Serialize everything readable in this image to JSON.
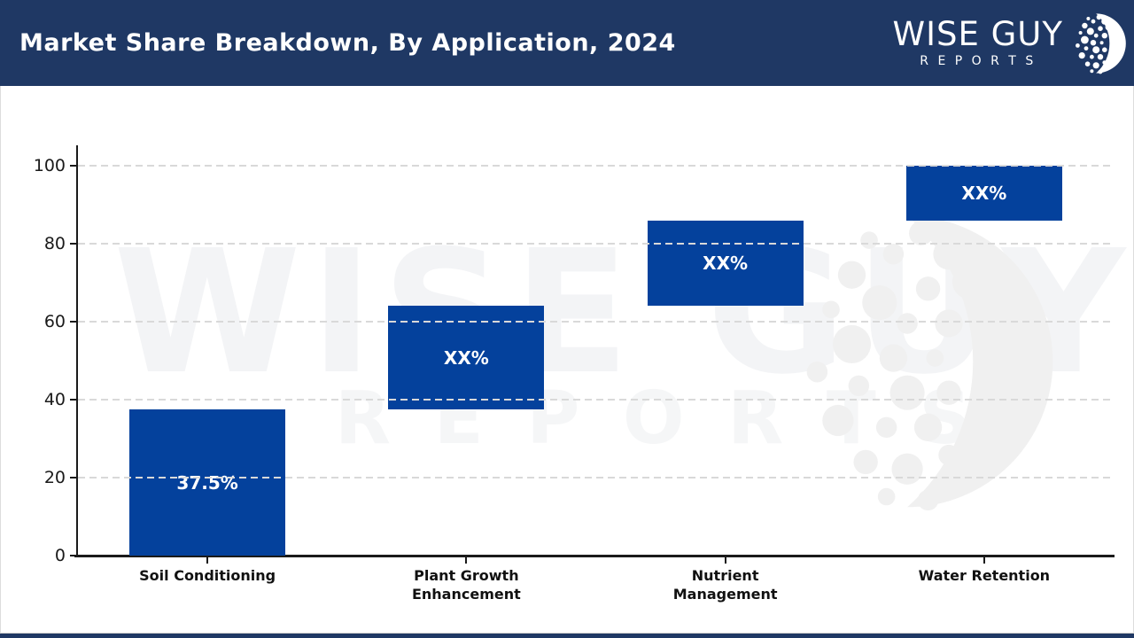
{
  "header": {
    "title": "Market Share Breakdown, By Application, 2024",
    "bg_color": "#1F3864",
    "logo": {
      "wordmark": "WISE GUY",
      "subtitle": "R E P O R T S"
    }
  },
  "watermark": {
    "line1": "WISE GUY",
    "line2": "R E P O R T S"
  },
  "chart_data": {
    "type": "bar",
    "subtype": "floating-waterfall",
    "title": "Market Share Breakdown, By Application, 2024",
    "categories": [
      "Soil Conditioning",
      "Plant Growth\nEnhancement",
      "Nutrient\nManagement",
      "Water Retention"
    ],
    "segments": [
      {
        "category": "Soil Conditioning",
        "start": 0,
        "end": 37.5,
        "label": "37.5%"
      },
      {
        "category": "Plant Growth Enhancement",
        "start": 37.5,
        "end": 64,
        "label": "XX%"
      },
      {
        "category": "Nutrient Management",
        "start": 64,
        "end": 86,
        "label": "XX%"
      },
      {
        "category": "Water Retention",
        "start": 86,
        "end": 100,
        "label": "XX%"
      }
    ],
    "xlabel": "",
    "ylabel": "",
    "ylim": [
      0,
      100
    ],
    "yticks": [
      0,
      20,
      40,
      60,
      80,
      100
    ],
    "grid": "horizontal-dashed-over-bars",
    "legend": "none",
    "bar_color": "#04419C",
    "bar_label_color": "#FFFFFF",
    "axis_color": "#1A1A1A",
    "grid_color": "#D9D9D9"
  }
}
